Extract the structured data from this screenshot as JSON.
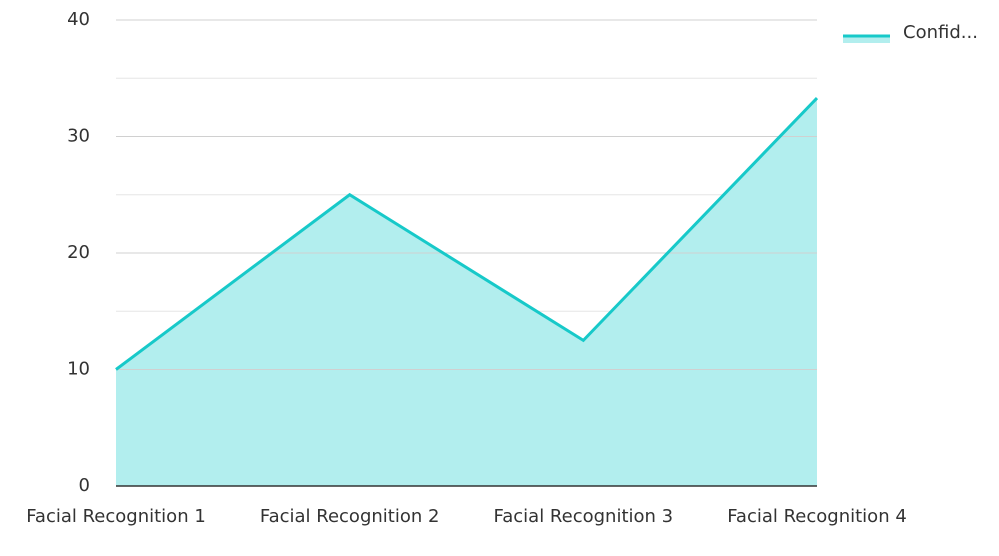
{
  "chart_data": {
    "type": "area",
    "categories": [
      "Facial Recognition 1",
      "Facial Recognition 2",
      "Facial Recognition 3",
      "Facial Recognition 4"
    ],
    "series": [
      {
        "name": "Confid...",
        "color": "#17c9c9",
        "fill": "#b2eeee",
        "values": [
          10,
          25,
          12.5,
          33.3
        ]
      }
    ],
    "ylim": [
      0,
      40
    ],
    "yticks": [
      0,
      10,
      20,
      30,
      40
    ],
    "minor_yticks": [
      5,
      15,
      25,
      35
    ],
    "grid": true,
    "legend": "top-right"
  }
}
